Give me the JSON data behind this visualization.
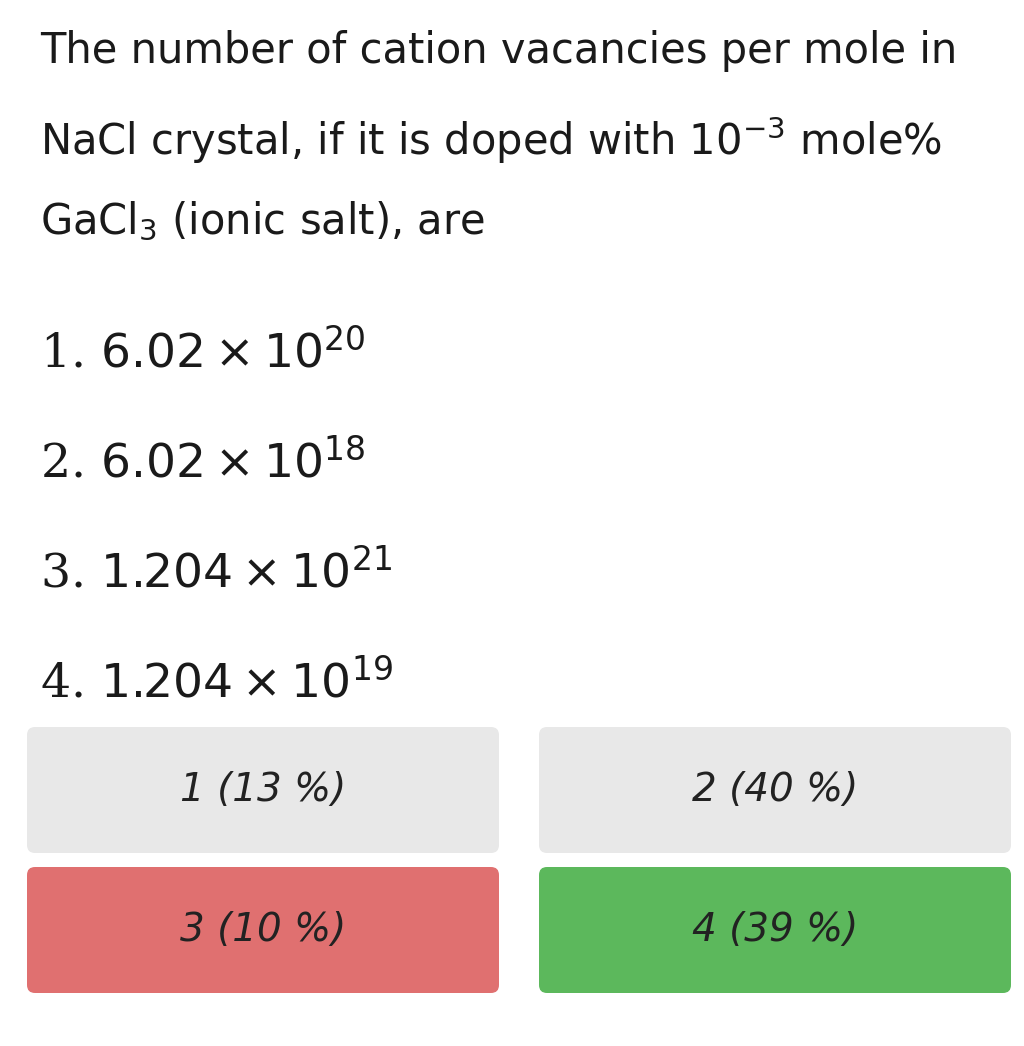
{
  "background_color": "#ffffff",
  "title_lines": [
    "The number of cation vacancies per mole in",
    "NaCl crystal, if it is doped with $10^{-3}$ mole%",
    "GaCl$_3$ (ionic salt), are"
  ],
  "options": [
    {
      "number": "1.",
      "text": "$6.02 \\times 10^{20}$"
    },
    {
      "number": "2.",
      "text": "$6.02 \\times 10^{18}$"
    },
    {
      "number": "3.",
      "text": "$1.204 \\times 10^{21}$"
    },
    {
      "number": "4.",
      "text": "$1.204 \\times 10^{19}$"
    }
  ],
  "buttons": [
    {
      "label": "1 (13 %)",
      "color": "#e8e8e8",
      "text_color": "#222222",
      "row": 0,
      "col": 0
    },
    {
      "label": "2 (40 %)",
      "color": "#e8e8e8",
      "text_color": "#222222",
      "row": 0,
      "col": 1
    },
    {
      "label": "3 (10 %)",
      "color": "#e07070",
      "text_color": "#222222",
      "row": 1,
      "col": 0
    },
    {
      "label": "4 (39 %)",
      "color": "#5cb85c",
      "text_color": "#222222",
      "row": 1,
      "col": 1
    }
  ],
  "title_fontsize": 30,
  "option_fontsize": 34,
  "button_fontsize": 28,
  "fig_width": 10.24,
  "fig_height": 10.46,
  "dpi": 100
}
